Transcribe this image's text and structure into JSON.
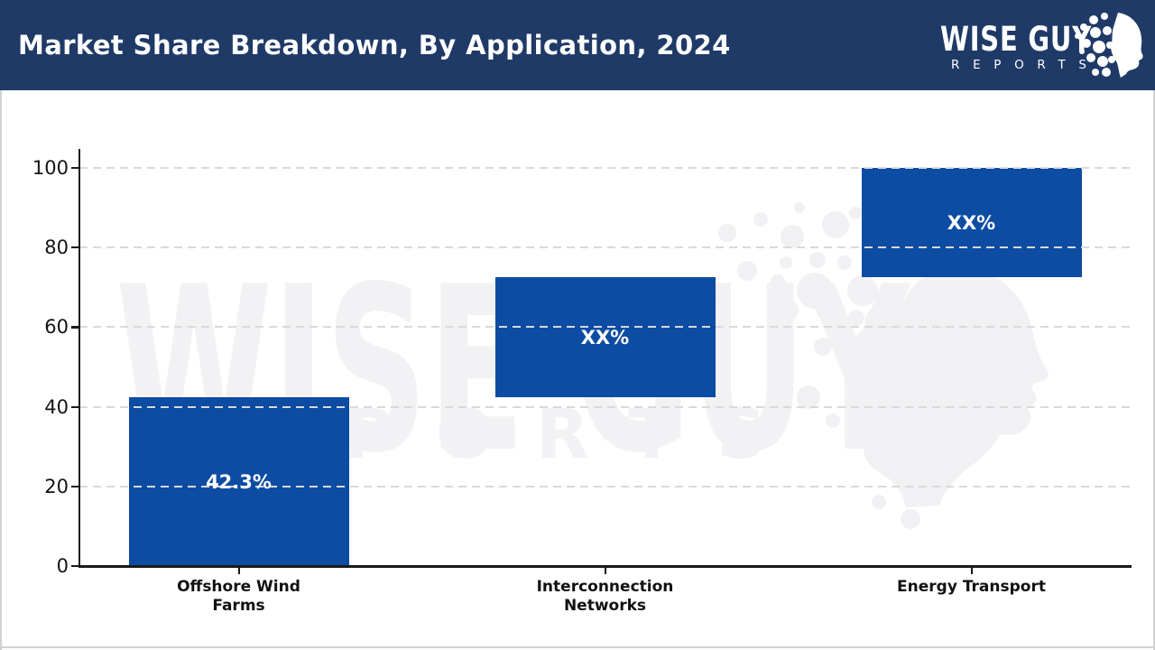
{
  "header": {
    "title": "Market Share Breakdown, By Application, 2024",
    "logo": {
      "brand_top": "WISE GUY",
      "brand_bottom": "REPORTS"
    }
  },
  "watermark": {
    "line1": "WISE GUY",
    "line2": "REPORTS"
  },
  "chart_data": {
    "type": "bar",
    "subtype": "waterfall-cumulative",
    "title": "Market Share Breakdown, By Application, 2024",
    "categories": [
      {
        "name": "Offshore Wind Farms",
        "lines": [
          "Offshore Wind",
          "Farms"
        ]
      },
      {
        "name": "Interconnection Networks",
        "lines": [
          "Interconnection",
          "Networks"
        ]
      },
      {
        "name": "Energy Transport",
        "lines": [
          "Energy Transport"
        ]
      }
    ],
    "segments": [
      {
        "category": "Offshore Wind Farms",
        "start": 0,
        "end": 42.3,
        "label": "42.3%"
      },
      {
        "category": "Interconnection Networks",
        "start": 42.3,
        "end": 72.5,
        "label": "XX%"
      },
      {
        "category": "Energy Transport",
        "start": 72.5,
        "end": 100,
        "label": "XX%"
      }
    ],
    "ylabel": "",
    "xlabel": "",
    "ylim": [
      0,
      100
    ],
    "yticks": [
      0,
      20,
      40,
      60,
      80,
      100
    ],
    "grid": "horizontal-dashed-above-bars",
    "legend": "none",
    "bar_color": "#0c4ca3",
    "bar_label_color": "#ffffff"
  },
  "colors": {
    "header_bg": "#1f3a67",
    "bar": "#0c4ca3",
    "grid": "#d9d9d9",
    "axis": "#1a1a1a",
    "watermark": "#f2f2f4",
    "frame": "#d2d2d2"
  }
}
